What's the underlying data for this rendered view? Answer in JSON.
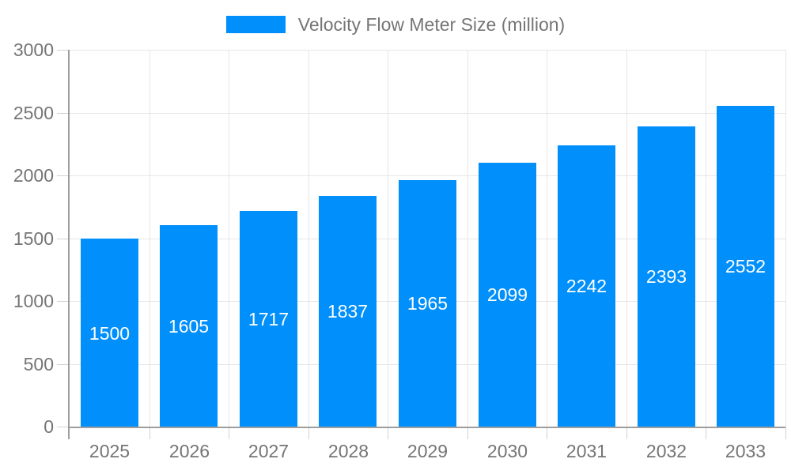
{
  "legend": {
    "items": [
      {
        "label": "Velocity Flow Meter Size (million)",
        "color": "#008FFB"
      }
    ]
  },
  "chart_data": {
    "type": "bar",
    "title": "Velocity Flow Meter Size (million)",
    "categories": [
      "2025",
      "2026",
      "2027",
      "2028",
      "2029",
      "2030",
      "2031",
      "2032",
      "2033"
    ],
    "series": [
      {
        "name": "Velocity Flow Meter Size (million)",
        "color": "#008FFB",
        "values": [
          1500,
          1605,
          1717,
          1837,
          1965,
          2099,
          2242,
          2393,
          2552
        ]
      }
    ],
    "xlabel": "",
    "ylabel": "",
    "ylim": [
      0,
      3000
    ],
    "y_ticks": [
      0,
      500,
      1000,
      1500,
      2000,
      2500,
      3000
    ],
    "grid": true,
    "legend_position": "top",
    "data_labels": "inside-center"
  },
  "colors": {
    "bar": "#008FFB",
    "grid": "#e6e6e6",
    "axis": "#9e9e9e",
    "tick": "#d2d2d2",
    "tick_label": "#757575",
    "legend_text": "#757575",
    "value_label": "#ffffff",
    "background": "#ffffff"
  }
}
